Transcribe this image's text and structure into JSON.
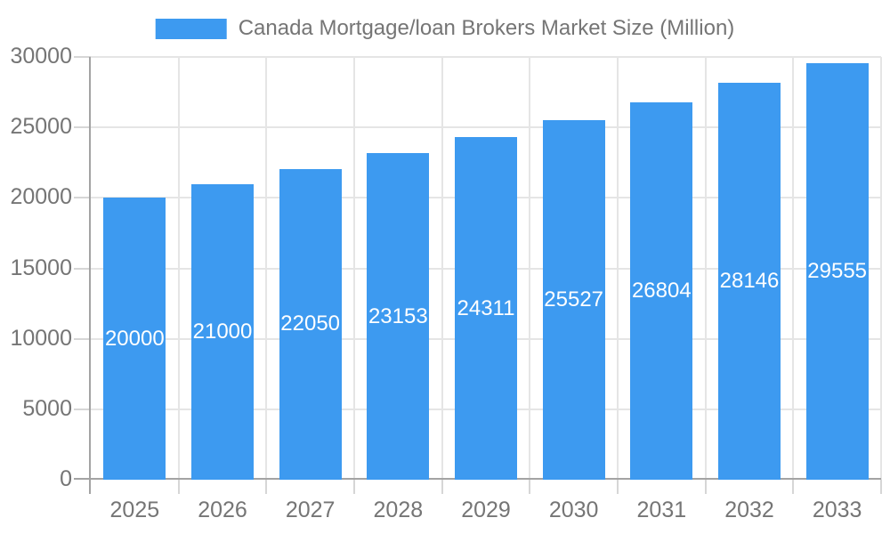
{
  "chart_data": {
    "type": "bar",
    "title": "Canada Mortgage/loan Brokers Market Size (Million)",
    "legend_position": "top",
    "categories": [
      "2025",
      "2026",
      "2027",
      "2028",
      "2029",
      "2030",
      "2031",
      "2032",
      "2033"
    ],
    "values": [
      20000,
      21000,
      22050,
      23153,
      24311,
      25527,
      26804,
      28146,
      29555
    ],
    "value_labels": [
      "20000",
      "21000",
      "22050",
      "23153",
      "24311",
      "25527",
      "26804",
      "28146",
      "29555"
    ],
    "xlabel": "",
    "ylabel": "",
    "ylim": [
      0,
      30000
    ],
    "yticks": [
      0,
      5000,
      10000,
      15000,
      20000,
      25000,
      30000
    ],
    "ytick_labels": [
      "0",
      "5000",
      "10000",
      "15000",
      "20000",
      "25000",
      "30000"
    ],
    "grid": true
  },
  "colors": {
    "bar": "#3D9AF0",
    "value_label": "#ffffff",
    "gridline": "#E5E5E5",
    "axis_line": "#A3A3A3",
    "tick": "#D6D6D6",
    "text": "#757575",
    "background": "#ffffff"
  }
}
